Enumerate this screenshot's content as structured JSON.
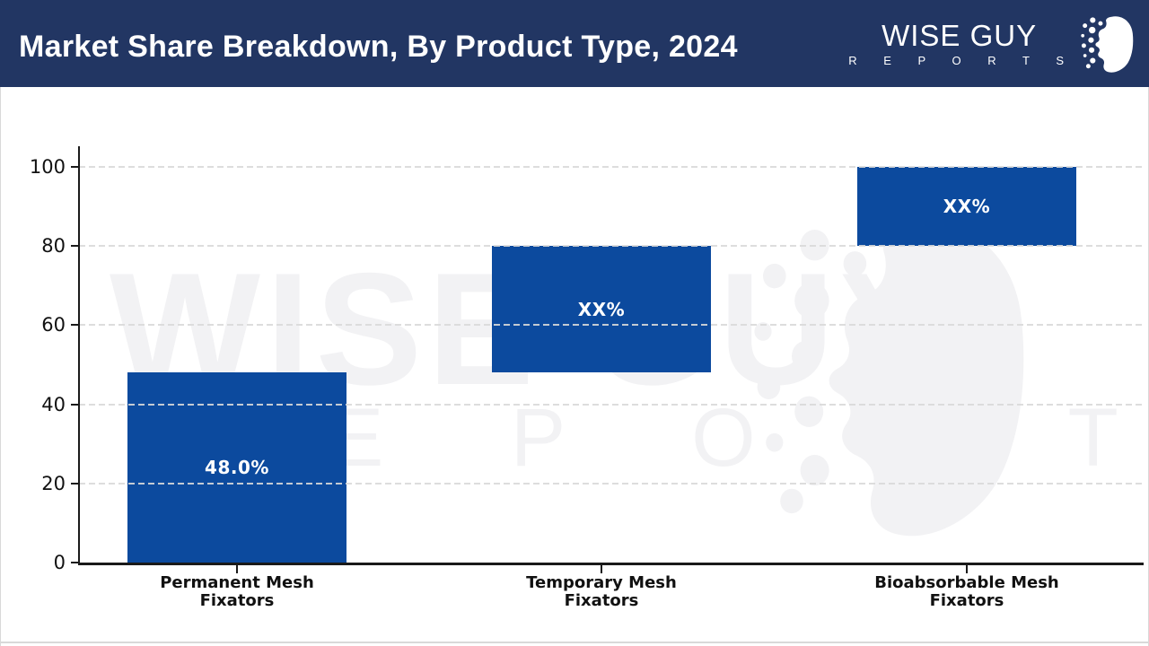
{
  "header": {
    "title": "Market Share Breakdown, By Product Type, 2024"
  },
  "logo": {
    "name": "WISE GUY",
    "tagline": "R E P O R T S"
  },
  "watermark": {
    "line1": "WISE GUY",
    "line2": "R E P O R T S"
  },
  "colors": {
    "header_bg": "#223663",
    "bar": "#0c4a9e",
    "grid": "#d9d9d9",
    "axis": "#1a1a1a",
    "bar_label": "#ffffff",
    "watermark": "#f2f2f4"
  },
  "chart_data": {
    "type": "bar",
    "subtype": "waterfall",
    "title": "Market Share Breakdown, By Product Type, 2024",
    "categories": [
      "Permanent Mesh\nFixators",
      "Temporary Mesh\nFixators",
      "Bioabsorbable Mesh\nFixators"
    ],
    "segments": [
      {
        "category": "Permanent Mesh Fixators",
        "start": 0,
        "end": 48,
        "label": "48.0%"
      },
      {
        "category": "Temporary Mesh Fixators",
        "start": 48,
        "end": 80,
        "label": "XX%"
      },
      {
        "category": "Bioabsorbable Mesh Fixators",
        "start": 80,
        "end": 100,
        "label": "XX%"
      }
    ],
    "yticks": [
      0,
      20,
      40,
      60,
      80,
      100
    ],
    "ylim": [
      0,
      104.8
    ],
    "xlabel": "",
    "ylabel": "",
    "grid": "horizontal-dashed",
    "legend": "none",
    "bar_color_hex": "#0c4a9e"
  }
}
